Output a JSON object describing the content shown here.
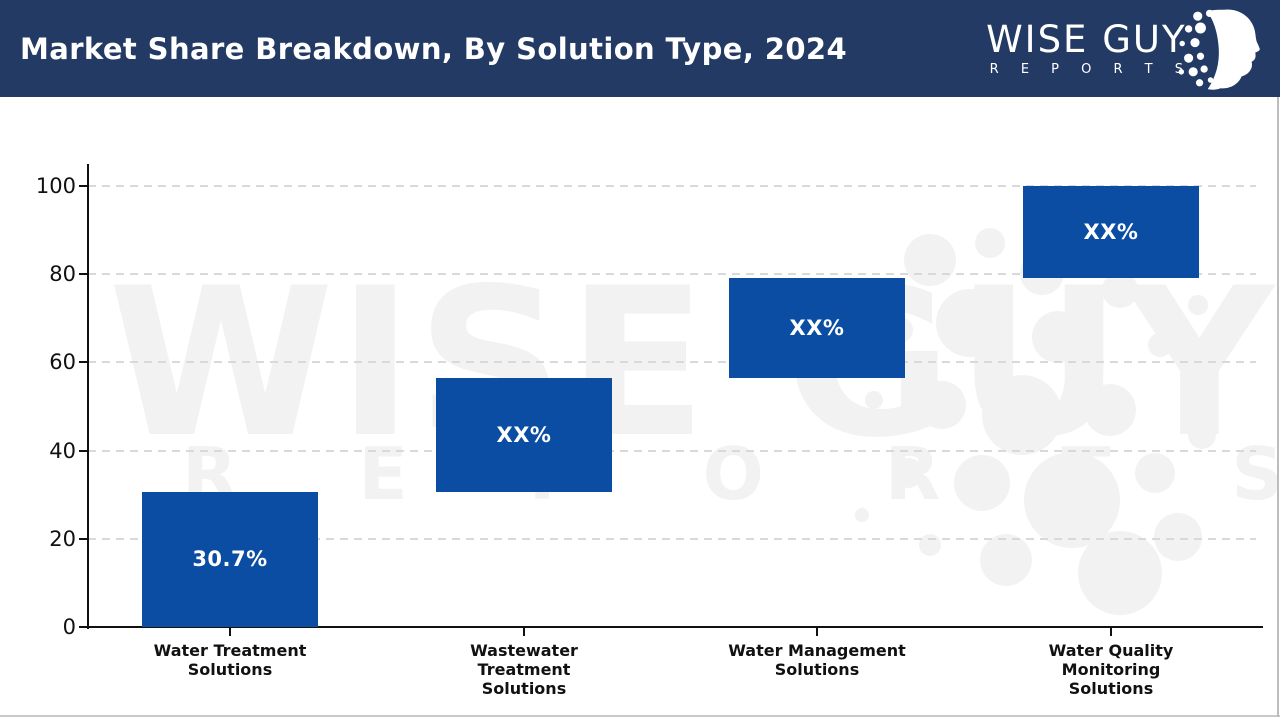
{
  "header": {
    "title": "Market Share Breakdown, By Solution Type, 2024",
    "bg_color": "#233a64",
    "logo": {
      "line1": "WISE GUY",
      "line2": "R E P O R T S",
      "icon": "face-profile-dots-icon"
    }
  },
  "watermark": {
    "line1": "WISE GUY",
    "line2": "R E P O R T S",
    "icon": "face-profile-dots-icon"
  },
  "colors": {
    "header_bg": "#233a64",
    "bar": "#0b4da2",
    "grid": "#d9d9d9",
    "axis": "#111111",
    "bar_label_text": "#ffffff",
    "watermark": "#f2f2f2"
  },
  "chart_data": {
    "type": "bar",
    "subtype": "waterfall",
    "title": "Market Share Breakdown, By Solution Type, 2024",
    "categories": [
      "Water Treatment Solutions",
      "Wastewater Treatment Solutions",
      "Water Management Solutions",
      "Water Quality Monitoring Solutions"
    ],
    "category_lines": [
      [
        "Water Treatment",
        "Solutions"
      ],
      [
        "Wastewater",
        "Treatment",
        "Solutions"
      ],
      [
        "Water Management",
        "Solutions"
      ],
      [
        "Water Quality",
        "Monitoring",
        "Solutions"
      ]
    ],
    "segments": [
      {
        "start": 0,
        "end": 30.7,
        "label": "30.7%"
      },
      {
        "start": 30.7,
        "end": 56.5,
        "label": "XX%"
      },
      {
        "start": 56.5,
        "end": 79.2,
        "label": "XX%"
      },
      {
        "start": 79.2,
        "end": 100,
        "label": "XX%"
      }
    ],
    "yticks": [
      0,
      20,
      40,
      60,
      80,
      100
    ],
    "ylim": [
      0,
      105
    ],
    "xlabel": "",
    "ylabel": "",
    "grid": "horizontal-dashed",
    "legend": "none"
  }
}
